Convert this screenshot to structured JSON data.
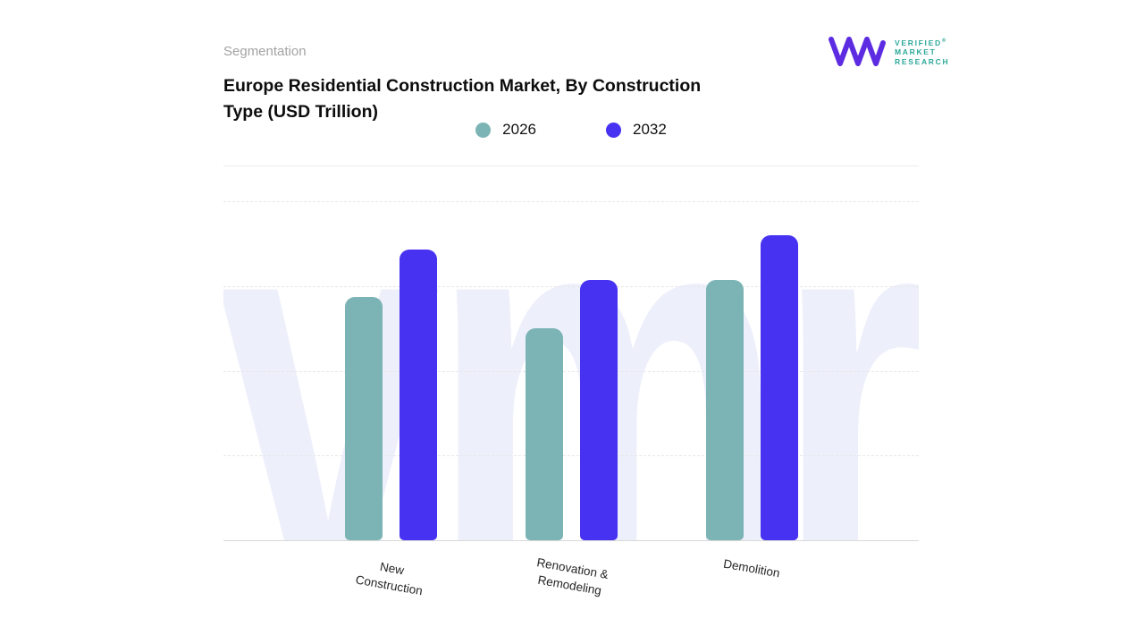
{
  "page": {
    "eyebrow": "Segmentation",
    "title_line1": "Europe Residential Construction Market, By Construction",
    "title_line2": "Type (USD Trillion)"
  },
  "logo": {
    "name_line1": "VERIFIED",
    "name_line2": "MARKET",
    "name_line3": "RESEARCH",
    "registered": "®",
    "text_color": "#2ea89a",
    "mark_color": "#5d2ce2"
  },
  "legend": [
    {
      "label": "2026",
      "color": "#7cb4b5"
    },
    {
      "label": "2032",
      "color": "#4732f2"
    }
  ],
  "watermark_text": "vmr",
  "chart_data": {
    "type": "bar",
    "title": "Europe Residential Construction Market, By Construction Type (USD Trillion)",
    "categories": [
      "New Construction",
      "Renovation & Remodeling",
      "Demolition"
    ],
    "category_lines": [
      [
        "New",
        "Construction"
      ],
      [
        "Renovation &",
        "Remodeling"
      ],
      [
        "Demolition"
      ]
    ],
    "series": [
      {
        "name": "2026",
        "color": "#7cb4b5",
        "values": [
          0.86,
          0.75,
          0.92
        ]
      },
      {
        "name": "2032",
        "color": "#4732f2",
        "values": [
          1.03,
          0.92,
          1.08
        ]
      }
    ],
    "ylim": [
      0,
      1.2
    ],
    "yticks_visible": false,
    "grid": "horizontal-dashed",
    "legend_position": "top"
  }
}
